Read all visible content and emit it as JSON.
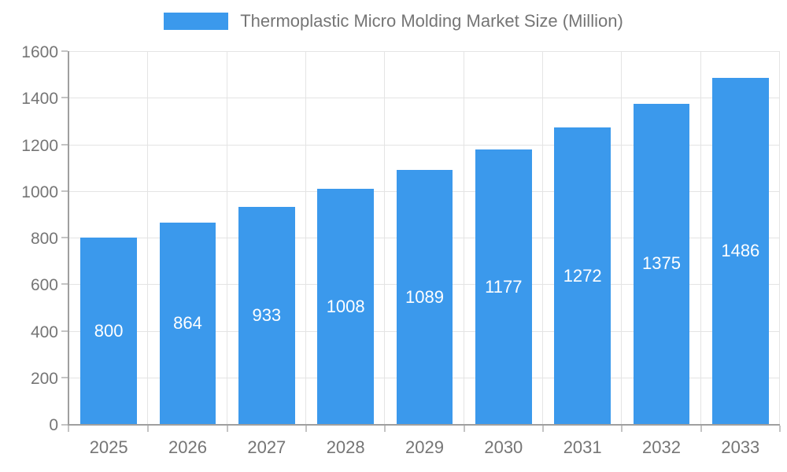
{
  "chart_data": {
    "type": "bar",
    "title": "Thermoplastic Micro Molding Market Size (Million)",
    "series_name": "Thermoplastic Micro Molding Market Size (Million)",
    "categories": [
      "2025",
      "2026",
      "2027",
      "2028",
      "2029",
      "2030",
      "2031",
      "2032",
      "2033"
    ],
    "values": [
      800,
      864,
      933,
      1008,
      1089,
      1177,
      1272,
      1375,
      1486
    ],
    "xlabel": "",
    "ylabel": "",
    "ylim": [
      0,
      1600
    ],
    "yticks": [
      0,
      200,
      400,
      600,
      800,
      1000,
      1200,
      1400,
      1600
    ],
    "grid": true,
    "legend_position": "top",
    "bar_labels_inside": true
  },
  "colors": {
    "bar": "#3b99ec",
    "grid": "#e4e4e4",
    "axis": "#9f9f9f",
    "tick": "#c4c4c4",
    "text": "#757575",
    "bar_label": "#ffffff",
    "background": "#ffffff"
  }
}
